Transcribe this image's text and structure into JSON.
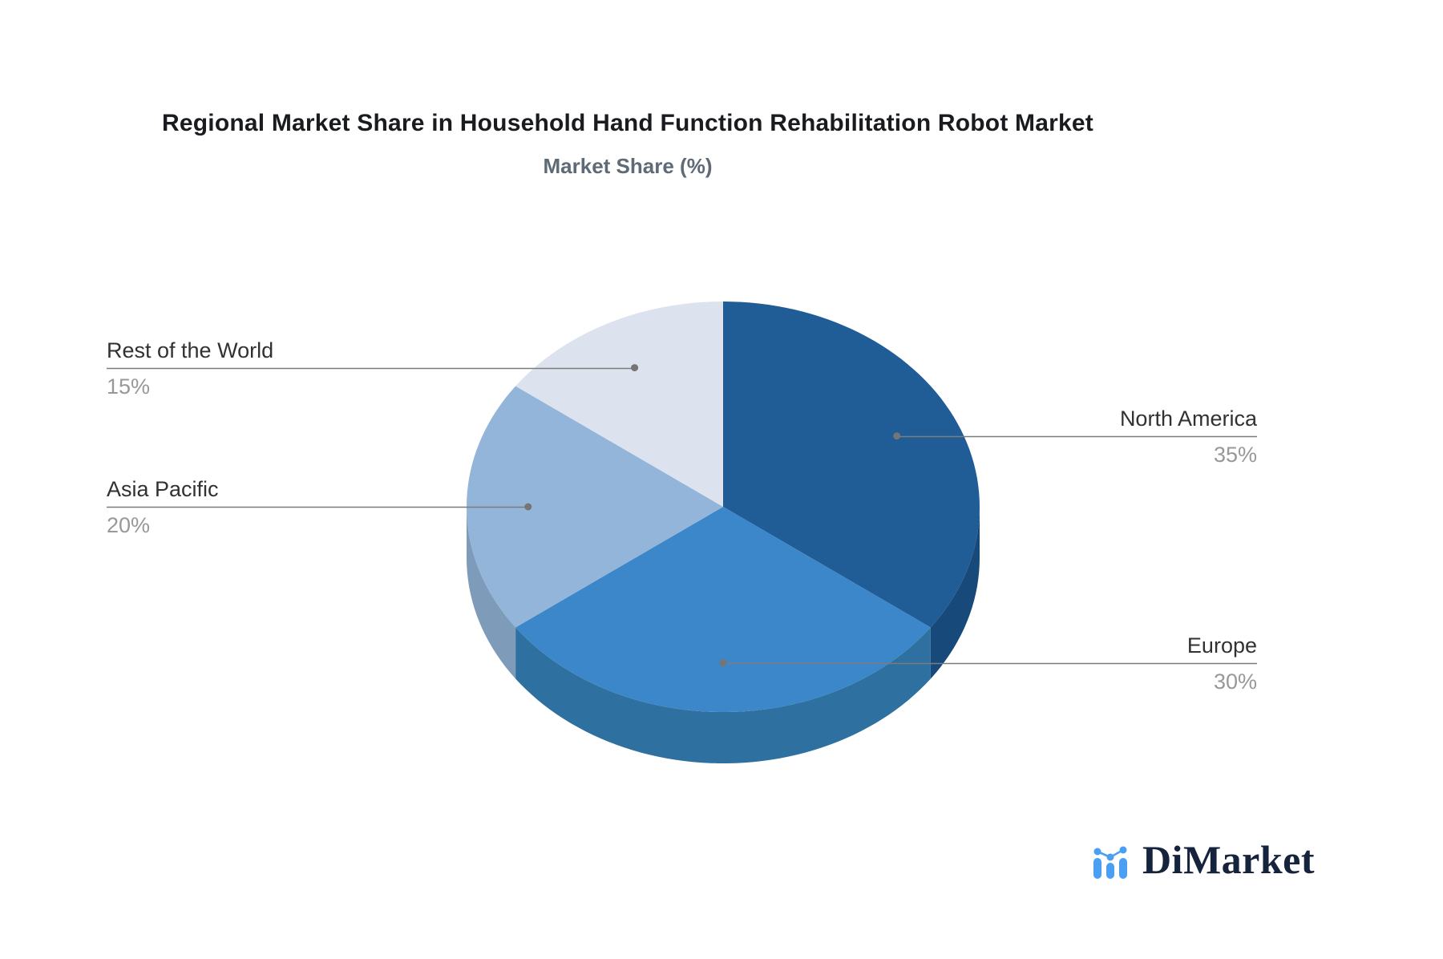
{
  "header": {
    "title": "Regional Market Share in Household Hand Function Rehabilitation Robot Market",
    "subtitle": "Market Share (%)"
  },
  "chart_data": {
    "type": "pie",
    "three_d": true,
    "start_angle_deg": -90,
    "direction": "clockwise",
    "unit": "%",
    "labels": [
      "North America",
      "Europe",
      "Asia Pacific",
      "Rest of the World"
    ],
    "values": [
      35,
      30,
      20,
      15
    ],
    "value_labels": [
      "35%",
      "30%",
      "20%",
      "15%"
    ],
    "label_sides": [
      "right",
      "right",
      "left",
      "left"
    ],
    "colors_top": [
      "#205D97",
      "#3B87C9",
      "#93B5D9",
      "#DCE3EF"
    ],
    "colors_side": [
      "#17497A",
      "#2E709F",
      "#7E9BB9",
      "#B6C2D2"
    ],
    "leader_line_color": "#7c7c7c",
    "leader_dot_color": "#757575",
    "legend": "none"
  },
  "branding": {
    "logo_text": "DiMarket",
    "logo_text_color": "#16233c",
    "logo_icon_color": "#4A9FF2",
    "logo_icon": "bar-chart-logo-icon"
  }
}
